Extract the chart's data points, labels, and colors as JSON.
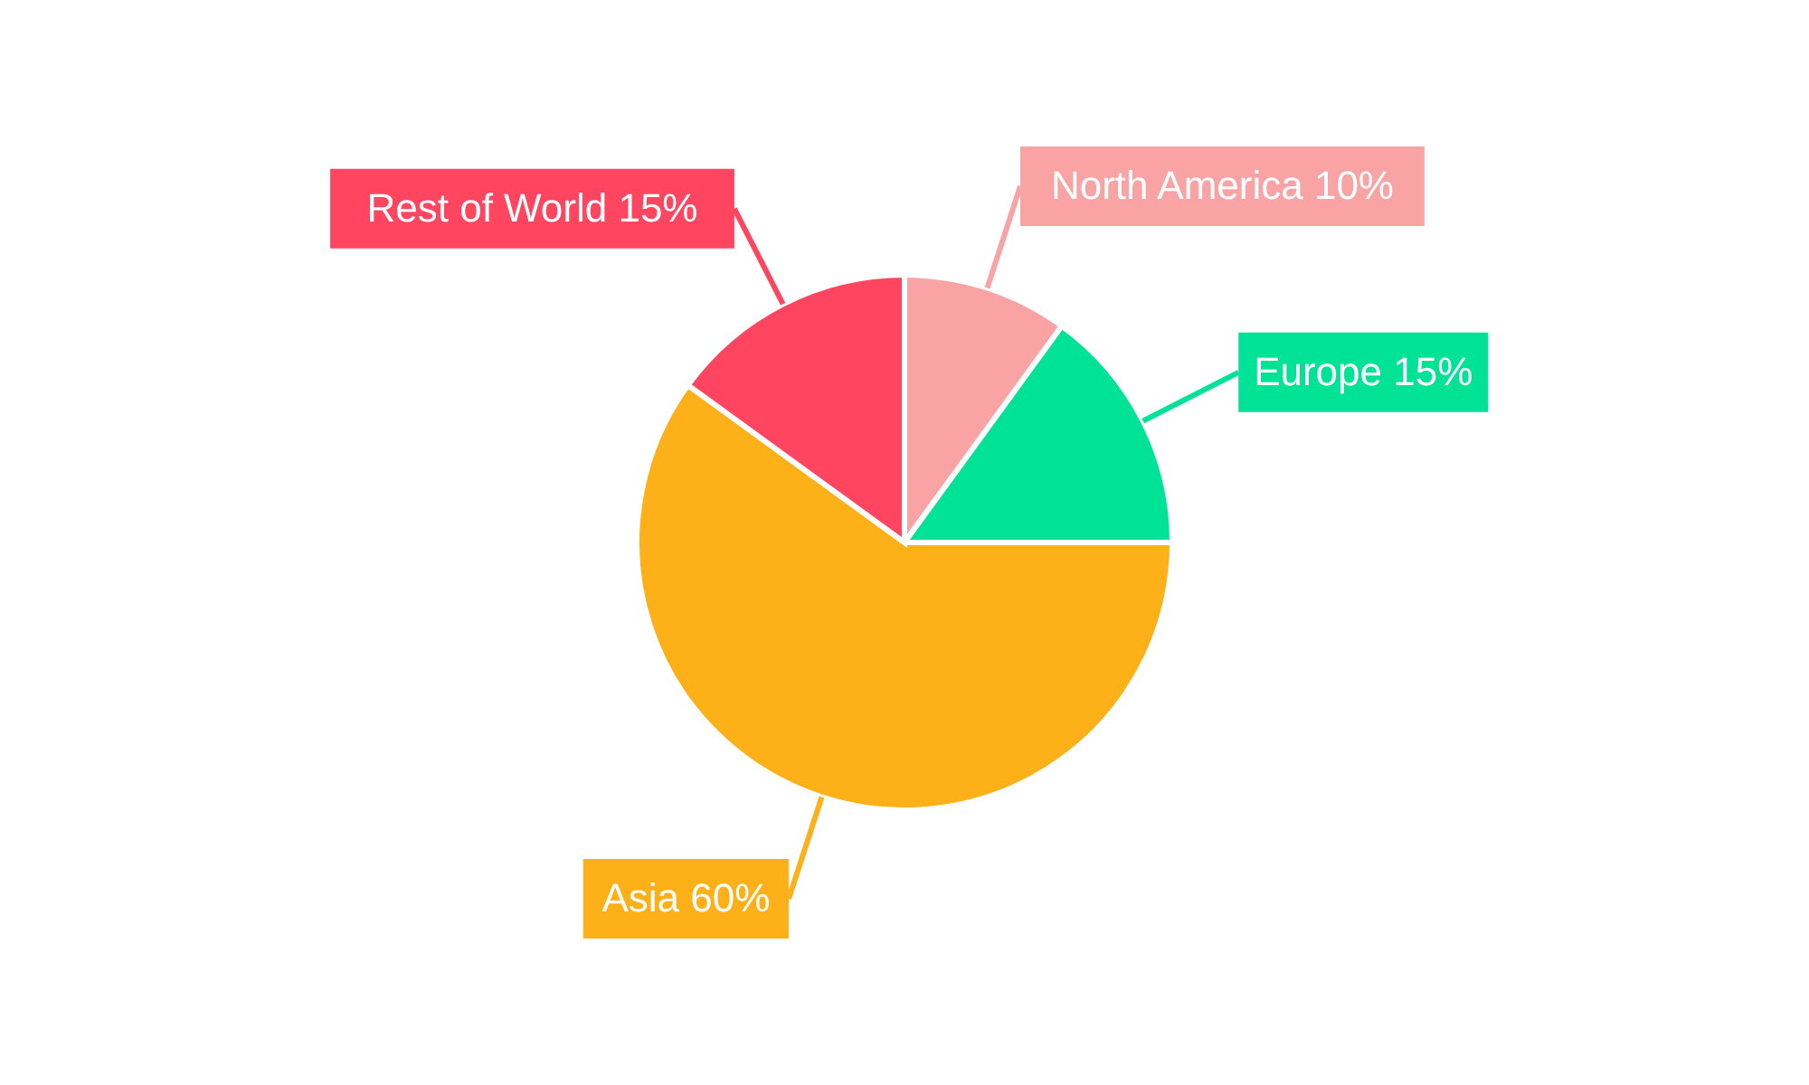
{
  "chart_data": {
    "type": "pie",
    "categories": [
      "North America",
      "Europe",
      "Asia",
      "Rest of World"
    ],
    "values": [
      10,
      15,
      60,
      15
    ],
    "value_labels": [
      "10%",
      "15%",
      "60%",
      "15%"
    ],
    "colors": [
      "#f9a3a4",
      "#00e396",
      "#feb019",
      "#ff4560"
    ]
  }
}
